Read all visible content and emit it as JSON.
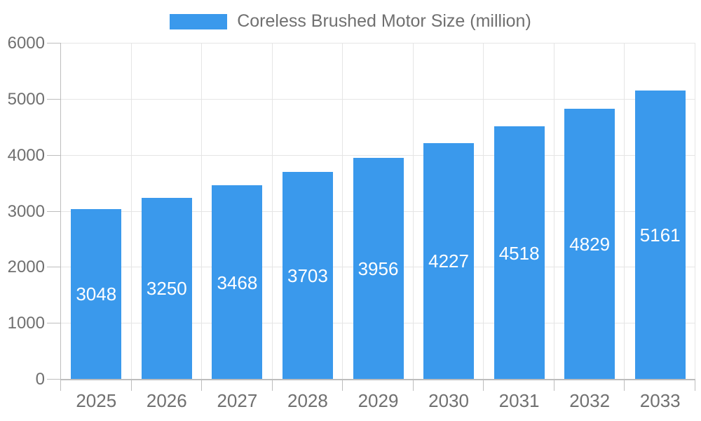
{
  "chart_data": {
    "type": "bar",
    "title": "",
    "series_name": "Coreless Brushed Motor Size (million)",
    "categories": [
      "2025",
      "2026",
      "2027",
      "2028",
      "2029",
      "2030",
      "2031",
      "2032",
      "2033"
    ],
    "values": [
      3048,
      3250,
      3468,
      3703,
      3956,
      4227,
      4518,
      4829,
      5161
    ],
    "yticks": [
      0,
      1000,
      2000,
      3000,
      4000,
      5000,
      6000
    ],
    "ylim": [
      0,
      6000
    ],
    "xlabel": "",
    "ylabel": "",
    "grid": true,
    "legend_position": "top-center",
    "bar_value_labels_position": "center-inside",
    "colors": {
      "bar": "#3A99EC",
      "bar_label_text": "#ffffff",
      "axis_text": "#707070",
      "legend_text": "#707070",
      "gridline": "#e5e5e5",
      "axis_line": "#bdbdbd",
      "background": "#ffffff"
    }
  }
}
